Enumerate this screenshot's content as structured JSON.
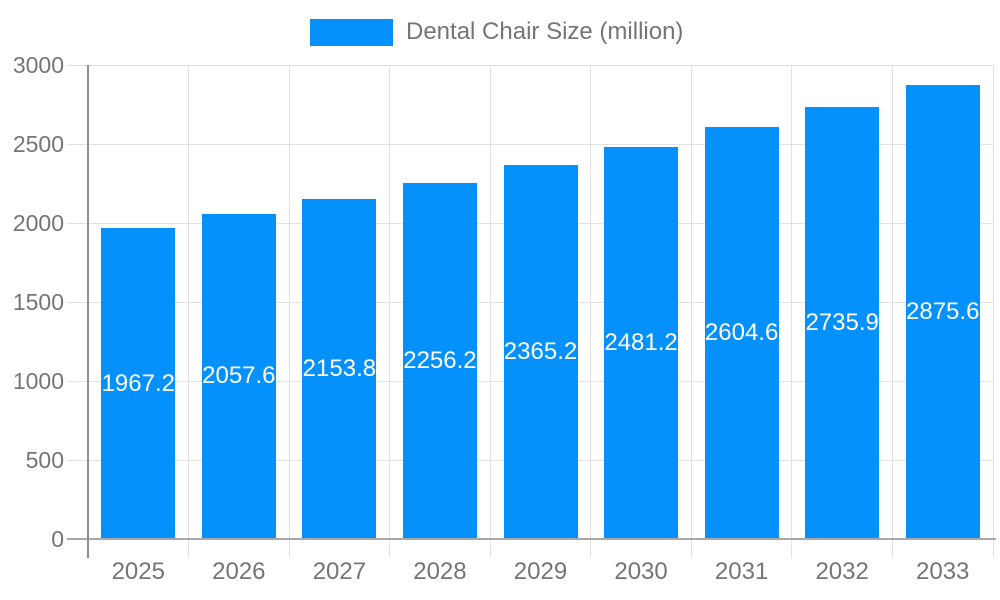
{
  "legend": {
    "label": "Dental Chair Size (million)"
  },
  "chart_data": {
    "type": "bar",
    "title": "Dental Chair Size (million)",
    "series_name": "Dental Chair Size (million)",
    "categories": [
      "2025",
      "2026",
      "2027",
      "2028",
      "2029",
      "2030",
      "2031",
      "2032",
      "2033"
    ],
    "values": [
      1967.2,
      2057.6,
      2153.8,
      2256.2,
      2365.2,
      2481.2,
      2604.6,
      2735.9,
      2875.6
    ],
    "value_labels": [
      "1967.2",
      "2057.6",
      "2153.8",
      "2256.2",
      "2365.2",
      "2481.2",
      "2604.6",
      "2735.9",
      "2875.6"
    ],
    "xlabel": "",
    "ylabel": "",
    "ylim": [
      0,
      3000
    ],
    "y_ticks": [
      0,
      500,
      1000,
      1500,
      2000,
      2500,
      3000
    ],
    "grid": true,
    "legend_position": "top",
    "colors": {
      "bar": "#0591FB",
      "value_label": "#ffffff",
      "axis_line": "#8e8e8e",
      "baseline": "#a8a8a8",
      "gridline": "#e2e2e2",
      "tick_label": "#757575"
    }
  }
}
